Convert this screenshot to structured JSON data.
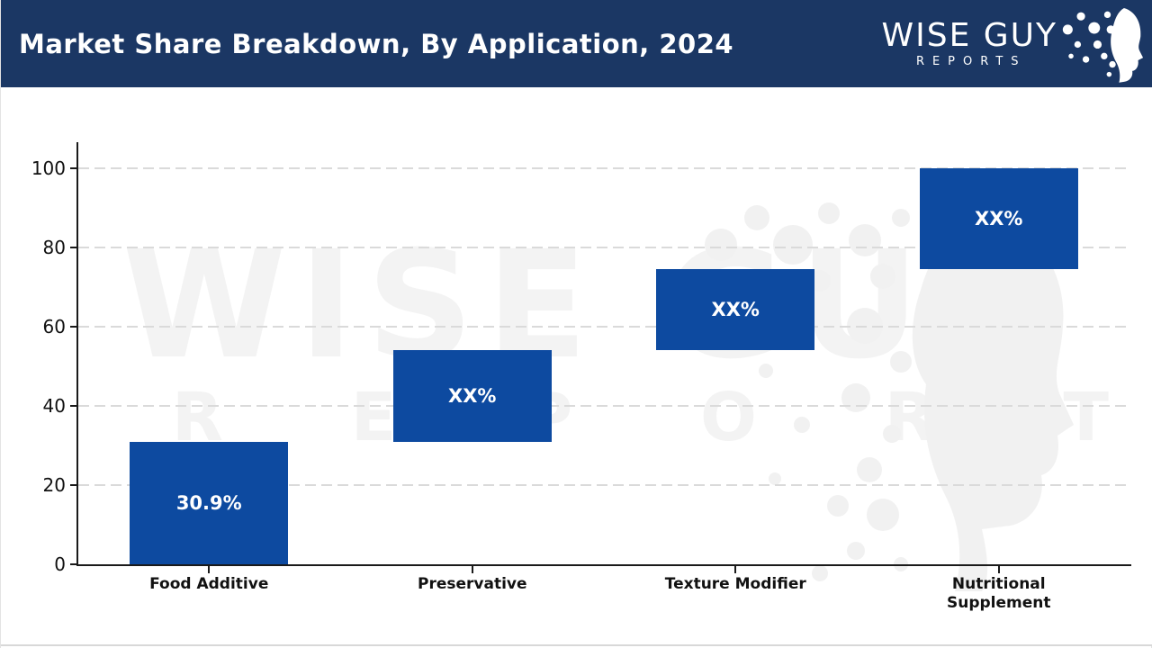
{
  "header": {
    "title": "Market Share Breakdown, By Application, 2024",
    "logo": {
      "line1": "WISE GUY",
      "line2": "REPORTS"
    }
  },
  "watermark": {
    "line1": "WISE GUY",
    "line2": "R E P O R T S"
  },
  "chart_data": {
    "type": "bar",
    "variant": "waterfall",
    "title": "Market Share Breakdown, By Application, 2024",
    "categories": [
      "Food Additive",
      "Preservative",
      "Texture Modifier",
      "Nutritional Supplement"
    ],
    "segments": [
      {
        "category": "Food Additive",
        "start": 0,
        "end": 30.9,
        "label": "30.9%"
      },
      {
        "category": "Preservative",
        "start": 30.9,
        "end": 54.0,
        "label": "XX%"
      },
      {
        "category": "Texture Modifier",
        "start": 54.0,
        "end": 74.5,
        "label": "XX%"
      },
      {
        "category": "Nutritional Supplement",
        "start": 74.5,
        "end": 100,
        "label": "XX%"
      }
    ],
    "yticks": [
      0,
      20,
      40,
      60,
      80,
      100
    ],
    "ylim": [
      0,
      106
    ],
    "grid": true,
    "legend": false,
    "bar_color": "#0d4aa0",
    "label_color": "#ffffff",
    "header_color": "#1b3764"
  }
}
